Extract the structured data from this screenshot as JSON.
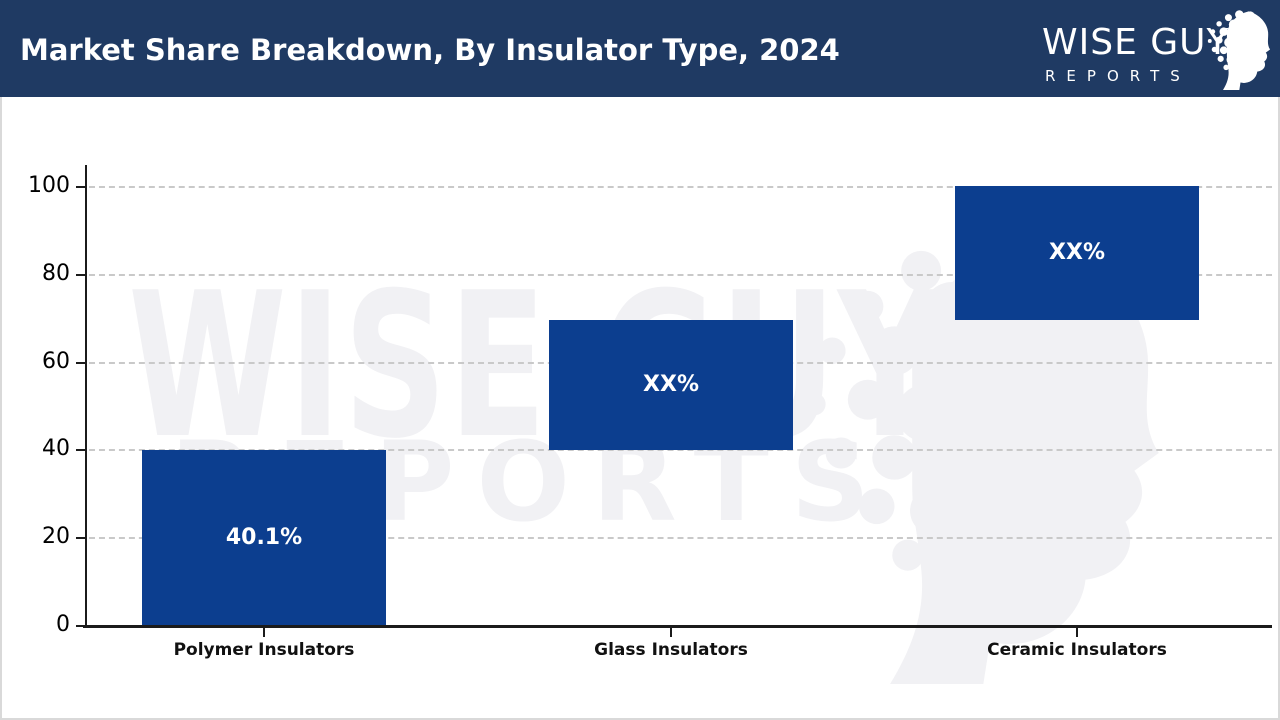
{
  "header": {
    "title": "Market Share Breakdown, By Insulator Type, 2024",
    "logo_line1": "WISE GUY",
    "logo_line2": "REPORTS"
  },
  "watermark": {
    "line1": "WISE GUY",
    "line2": "REPORTS"
  },
  "chart_data": {
    "type": "bar",
    "subtype": "waterfall-floating-segments",
    "title": "Market Share Breakdown, By Insulator Type, 2024",
    "categories": [
      "Polymer Insulators",
      "Glass Insulators",
      "Ceramic Insulators"
    ],
    "segments": [
      {
        "category": "Polymer Insulators",
        "start": 0,
        "end": 40.1,
        "label": "40.1%"
      },
      {
        "category": "Glass Insulators",
        "start": 40.1,
        "end": 69.7,
        "label": "XX%"
      },
      {
        "category": "Ceramic Insulators",
        "start": 69.7,
        "end": 100.3,
        "label": "XX%"
      }
    ],
    "yticks": [
      0,
      20,
      40,
      60,
      80,
      100
    ],
    "ylim": [
      0,
      105
    ],
    "xlabel": "",
    "ylabel": "",
    "grid": "horizontal-dashed",
    "legend": "none",
    "colors": {
      "bar": "#0c3e8f",
      "bar_label": "#ffffff",
      "grid": "#c9c9c9",
      "axis": "#1b1b1b",
      "header_bg": "#1f3a63",
      "watermark": "#f1f1f4"
    }
  }
}
